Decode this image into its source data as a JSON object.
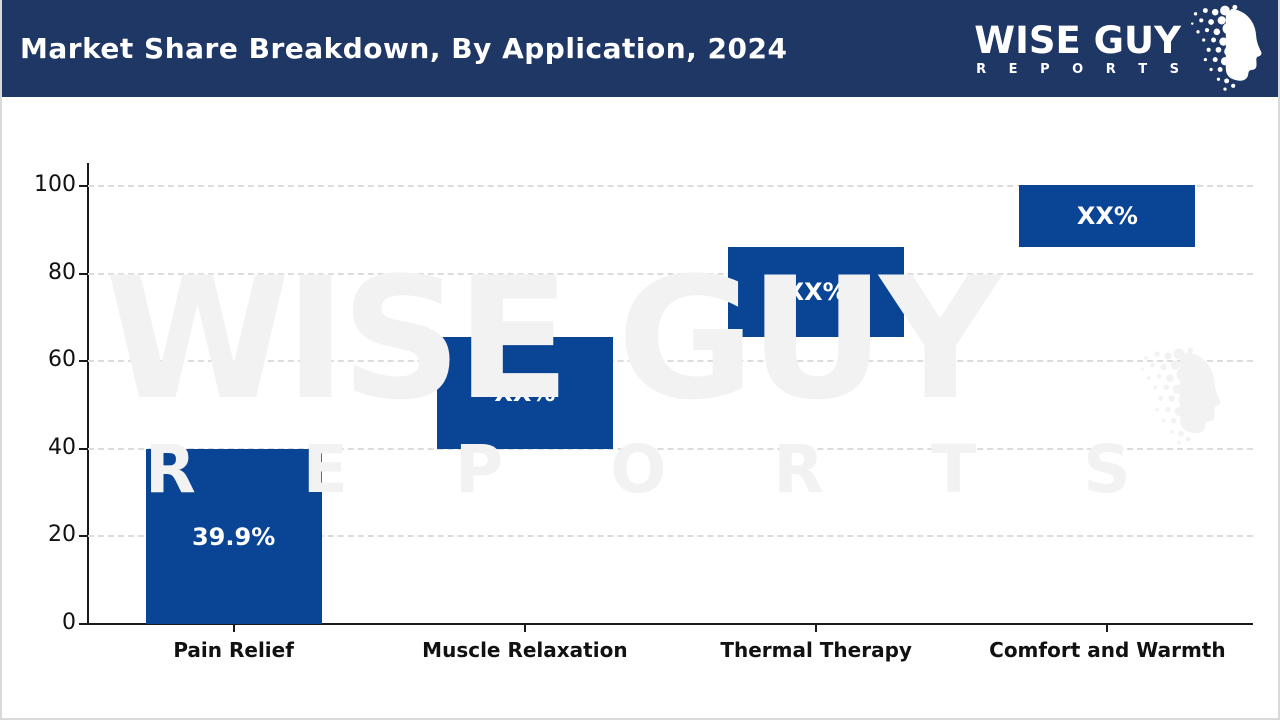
{
  "header": {
    "title": "Market Share Breakdown, By Application, 2024",
    "logo_line1": "WISE GUY",
    "logo_line2": "R E P O R T S"
  },
  "watermark": {
    "line1": "WISE GUY",
    "line2": "R E P O R T S"
  },
  "chart_data": {
    "type": "bar",
    "variant": "waterfall",
    "title": "Market Share Breakdown, By Application, 2024",
    "categories": [
      "Pain Relief",
      "Muscle Relaxation",
      "Thermal Therapy",
      "Comfort and Warmth"
    ],
    "segments": [
      {
        "category": "Pain Relief",
        "start": 0,
        "end": 39.9,
        "label": "39.9%"
      },
      {
        "category": "Muscle Relaxation",
        "start": 39.9,
        "end": 65.6,
        "label": "XX%"
      },
      {
        "category": "Thermal Therapy",
        "start": 65.6,
        "end": 86.1,
        "label": "XX%"
      },
      {
        "category": "Comfort and Warmth",
        "start": 86.1,
        "end": 100.3,
        "label": "XX%"
      }
    ],
    "yticks": [
      0,
      20,
      40,
      60,
      80,
      100
    ],
    "ylim": [
      0,
      105
    ],
    "xlabel": "",
    "ylabel": "",
    "legend": "none",
    "grid": "horizontal-dashed",
    "colors": {
      "bar": "#0a4595",
      "bar_label": "#ffffff",
      "axis": "#1a1a1a",
      "gridline": "#dcdcdc",
      "header_bg": "#1f3765",
      "header_text": "#ffffff",
      "watermark": "#f2f2f2",
      "border": "#d9d9d9"
    }
  }
}
